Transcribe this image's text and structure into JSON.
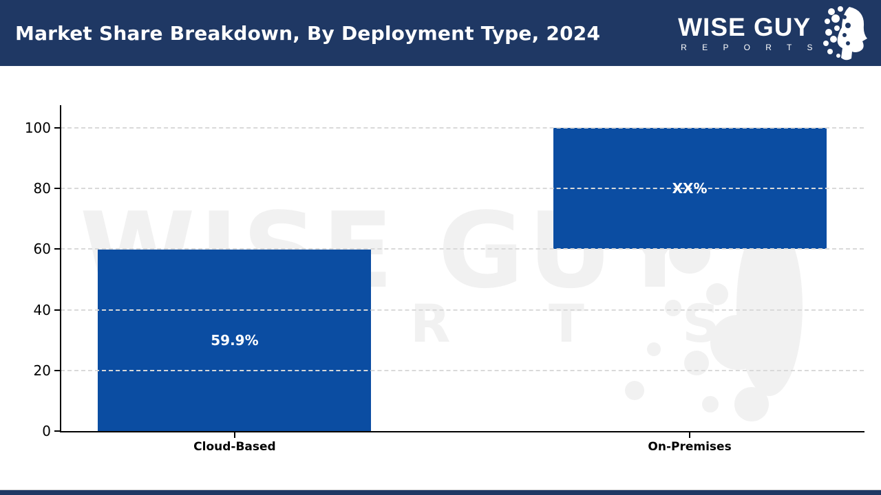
{
  "header": {
    "title": "Market Share Breakdown, By Deployment Type, 2024"
  },
  "logo": {
    "name": "WISE GUY",
    "tagline": "R E P O R T S",
    "icon": "dotted-face-profile-icon"
  },
  "watermark": {
    "line1": "WISE GUY",
    "line2": "R T S"
  },
  "colors": {
    "header_navy": "#1f3864",
    "bar_blue": "#0b4da2",
    "grid_gray": "#d9d9d9",
    "watermark_gray": "#f1f1f1",
    "axis_black": "#000000"
  },
  "chart_data": {
    "type": "bar",
    "title": "Market Share Breakdown, By Deployment Type, 2024",
    "categories": [
      "Cloud-Based",
      "On-Premises"
    ],
    "series": [
      {
        "name": "Market Share (%)",
        "bars": [
          {
            "category": "Cloud-Based",
            "start": 0,
            "end": 59.9,
            "label": "59.9%"
          },
          {
            "category": "On-Premises",
            "start": 60,
            "end": 100,
            "label": "XX%"
          }
        ]
      }
    ],
    "xlabel": "",
    "ylabel": "",
    "ylim": [
      0,
      100
    ],
    "yticks": [
      0,
      20,
      40,
      60,
      80,
      100
    ],
    "grid": "horizontal-dashed-over-bars",
    "legend": "none",
    "bar_color": "#0b4da2"
  }
}
